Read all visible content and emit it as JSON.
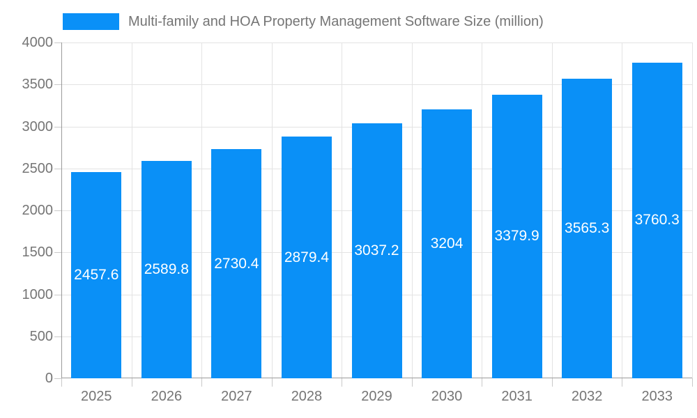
{
  "chart_data": {
    "type": "bar",
    "title": "Multi-family and HOA Property Management Software Size (million)",
    "legend_position": "top-left",
    "categories": [
      "2025",
      "2026",
      "2027",
      "2028",
      "2029",
      "2030",
      "2031",
      "2032",
      "2033"
    ],
    "values": [
      2457.6,
      2589.8,
      2730.4,
      2879.4,
      3037.2,
      3204,
      3379.9,
      3565.3,
      3760.3
    ],
    "value_labels": [
      "2457.6",
      "2589.8",
      "2730.4",
      "2879.4",
      "3037.2",
      "3204",
      "3379.9",
      "3565.3",
      "3760.3"
    ],
    "xlabel": "",
    "ylabel": "",
    "ylim": [
      0,
      4000
    ],
    "ytick_step": 500,
    "yticks": [
      0,
      500,
      1000,
      1500,
      2000,
      2500,
      3000,
      3500,
      4000
    ],
    "grid": true,
    "colors": {
      "bar": "#0a90f7",
      "value_text": "#ffffff",
      "axis_text": "#757575",
      "axis_line": "#9a9a9a",
      "gridline": "#e3e3e3",
      "tick": "#c9c9c9",
      "background": "#ffffff"
    }
  }
}
